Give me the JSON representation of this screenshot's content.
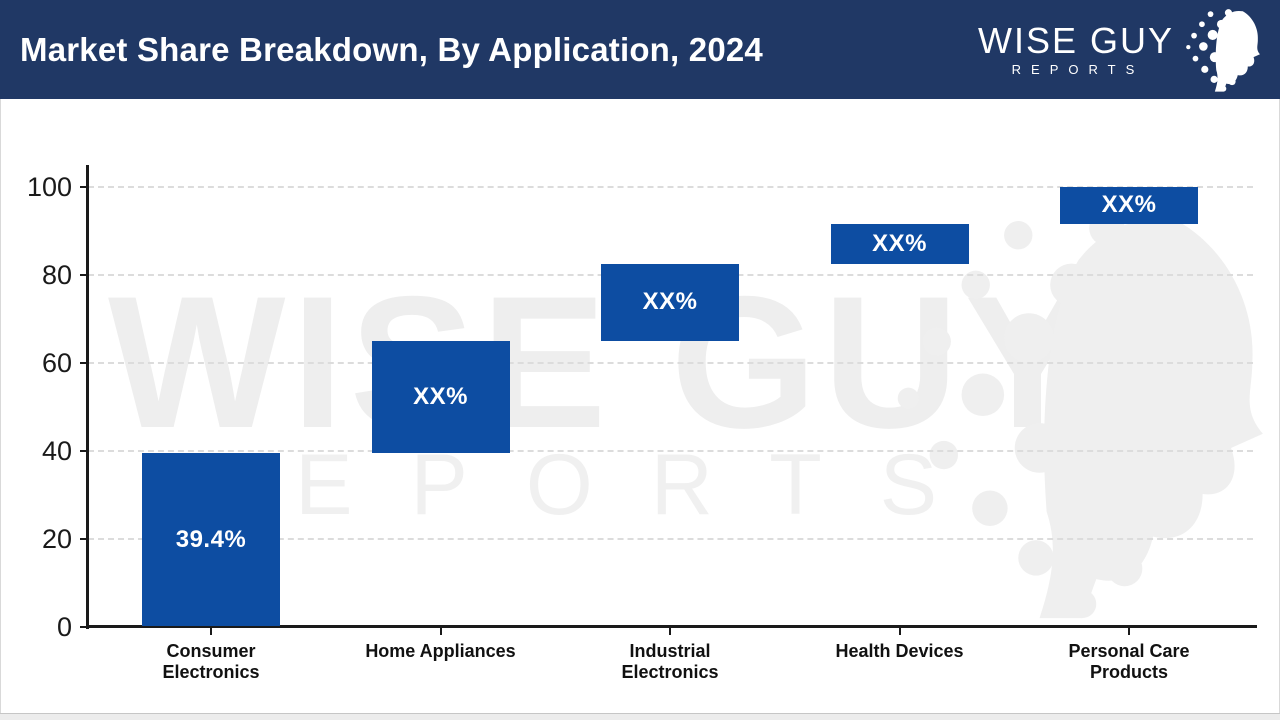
{
  "header": {
    "title": "Market Share Breakdown, By Application, 2024",
    "logo": {
      "line1": "WISE GUY",
      "line2": "REPORTS"
    }
  },
  "watermark": {
    "line1": "WISE GUY",
    "line2": "REPORTS"
  },
  "colors": {
    "header_bg": "#203865",
    "bar": "#0d4da2",
    "grid": "#dcdcdc",
    "axis": "#1a1a1a",
    "value_label": "#ffffff",
    "watermark": "#eeeeee"
  },
  "chart_data": {
    "type": "bar",
    "subtype": "floating-waterfall",
    "title": "Market Share Breakdown, By Application, 2024",
    "categories": [
      [
        "Consumer",
        "Electronics"
      ],
      [
        "Home Appliances"
      ],
      [
        "Industrial",
        "Electronics"
      ],
      [
        "Health Devices"
      ],
      [
        "Personal Care",
        "Products"
      ]
    ],
    "segments": [
      {
        "category": "Consumer Electronics",
        "start": 0,
        "end": 39.4,
        "label": "39.4%"
      },
      {
        "category": "Home Appliances",
        "start": 39.4,
        "end": 65.0,
        "label": "XX%"
      },
      {
        "category": "Industrial Electronics",
        "start": 65.0,
        "end": 82.5,
        "label": "XX%"
      },
      {
        "category": "Health Devices",
        "start": 82.5,
        "end": 91.7,
        "label": "XX%"
      },
      {
        "category": "Personal Care Products",
        "start": 91.7,
        "end": 100.0,
        "label": "XX%"
      }
    ],
    "yticks": [
      0,
      20,
      40,
      60,
      80,
      100
    ],
    "ylim": [
      0,
      105
    ],
    "xlabel": "",
    "ylabel": "",
    "grid": "dashed-horizontal",
    "legend": "none"
  }
}
